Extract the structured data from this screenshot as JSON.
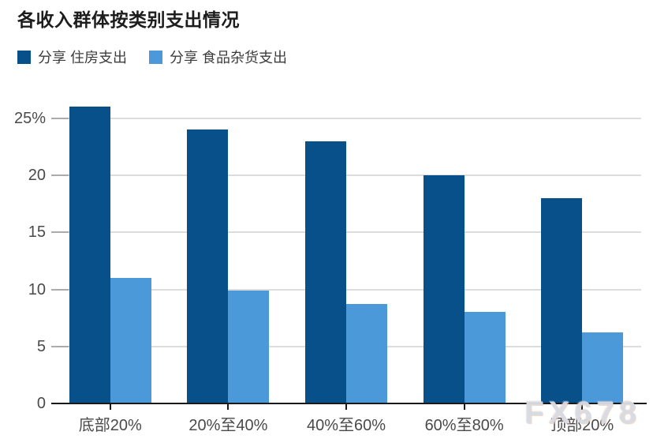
{
  "chart_data": {
    "type": "bar",
    "title": "各收入群体按类别支出情况",
    "categories": [
      "底部20%",
      "20%至40%",
      "40%至60%",
      "60%至80%",
      "顶部20%"
    ],
    "series": [
      {
        "name": "分享 住房支出",
        "key": "housing",
        "color": "#07508a",
        "values": [
          26,
          24,
          23,
          20,
          18
        ]
      },
      {
        "name": "分享 食品杂货支出",
        "key": "groceries",
        "color": "#4c99d9",
        "values": [
          11,
          9.9,
          8.7,
          8,
          6.2
        ]
      }
    ],
    "yticks": [
      {
        "value": 25,
        "label": "25%"
      },
      {
        "value": 20,
        "label": "20"
      },
      {
        "value": 15,
        "label": "15"
      },
      {
        "value": 10,
        "label": "10"
      },
      {
        "value": 5,
        "label": "5"
      },
      {
        "value": 0,
        "label": "0"
      }
    ],
    "ylim": [
      0,
      27
    ],
    "grid": true,
    "legend_position": "top-left",
    "xlabel": "",
    "ylabel": ""
  },
  "watermark": {
    "text": "FX678"
  },
  "colors": {
    "gridline": "#dcdcdc",
    "axis": "#1a1a1a",
    "tick_label": "#4a4a4a"
  }
}
